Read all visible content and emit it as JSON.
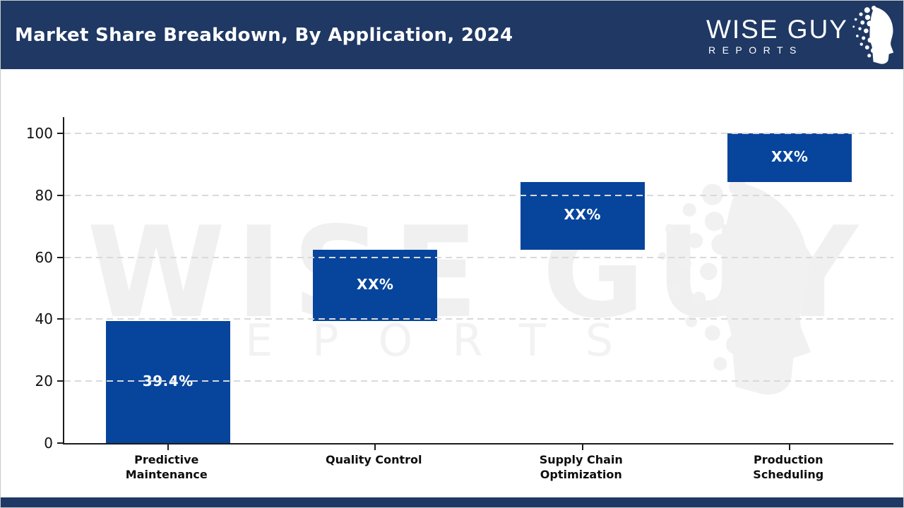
{
  "header": {
    "title": "Market Share Breakdown, By Application, 2024",
    "bg_color": "#1f3864",
    "logo": {
      "line1": "WISE GUY",
      "line2": "REPORTS"
    }
  },
  "watermark": {
    "line1": "WISE GUY",
    "line2": "REPORTS"
  },
  "chart_data": {
    "type": "bar",
    "subtype": "waterfall",
    "title": "Market Share Breakdown, By Application, 2024",
    "categories": [
      "Predictive Maintenance",
      "Quality Control",
      "Supply Chain Optimization",
      "Production Scheduling"
    ],
    "category_label_lines": [
      [
        "Predictive",
        "Maintenance"
      ],
      [
        "Quality Control"
      ],
      [
        "Supply Chain",
        "Optimization"
      ],
      [
        "Production",
        "Scheduling"
      ]
    ],
    "segments": [
      {
        "category": "Predictive Maintenance",
        "start": 0,
        "end": 39.4,
        "label": "39.4%"
      },
      {
        "category": "Quality Control",
        "start": 39.4,
        "end": 62.4,
        "label": "XX%"
      },
      {
        "category": "Supply Chain Optimization",
        "start": 62.4,
        "end": 84.2,
        "label": "XX%"
      },
      {
        "category": "Production Scheduling",
        "start": 84.2,
        "end": 100,
        "label": "XX%"
      }
    ],
    "xlabel": "",
    "ylabel": "",
    "ylim": [
      0,
      100
    ],
    "yticks": [
      0,
      20,
      40,
      60,
      80,
      100
    ],
    "grid": "horizontal-dashed-above-bars",
    "legend": "none",
    "bar_color": "#07459c",
    "bar_label_color": "#ffffff",
    "grid_color": "#d9d9d9",
    "axis_color": "#1c1c1c"
  }
}
